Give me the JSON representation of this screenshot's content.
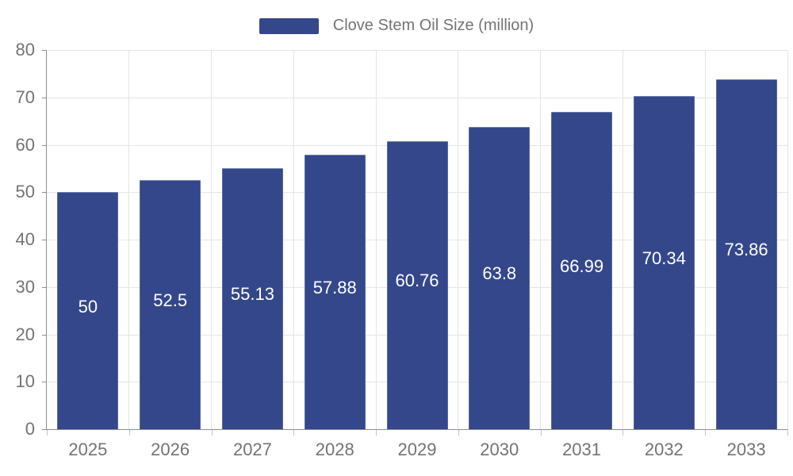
{
  "chart_data": {
    "type": "bar",
    "title": "",
    "legend_label": "Clove Stem Oil Size (million)",
    "legend_position": "top-center",
    "categories": [
      "2025",
      "2026",
      "2027",
      "2028",
      "2029",
      "2030",
      "2031",
      "2032",
      "2033"
    ],
    "values": [
      50,
      52.5,
      55.13,
      57.88,
      60.76,
      63.8,
      66.99,
      70.34,
      73.86
    ],
    "xlabel": "",
    "ylabel": "",
    "ylim": [
      0,
      80
    ],
    "ytick_step": 10,
    "ytick_labels": [
      "0",
      "10",
      "20",
      "30",
      "40",
      "50",
      "60",
      "70",
      "80"
    ],
    "grid": true,
    "value_labels_shown": true,
    "colors": {
      "bar": "#35478B",
      "bar_value_label": "#FFFFFF",
      "axis_text": "#737373",
      "legend_text": "#747474",
      "grid_line": "#E4E4E4",
      "axis_line": "#8E8E8E",
      "y_tick": "#8E8E8E",
      "x_tick": "#C4C4C4",
      "background": "#FFFFFF"
    }
  }
}
